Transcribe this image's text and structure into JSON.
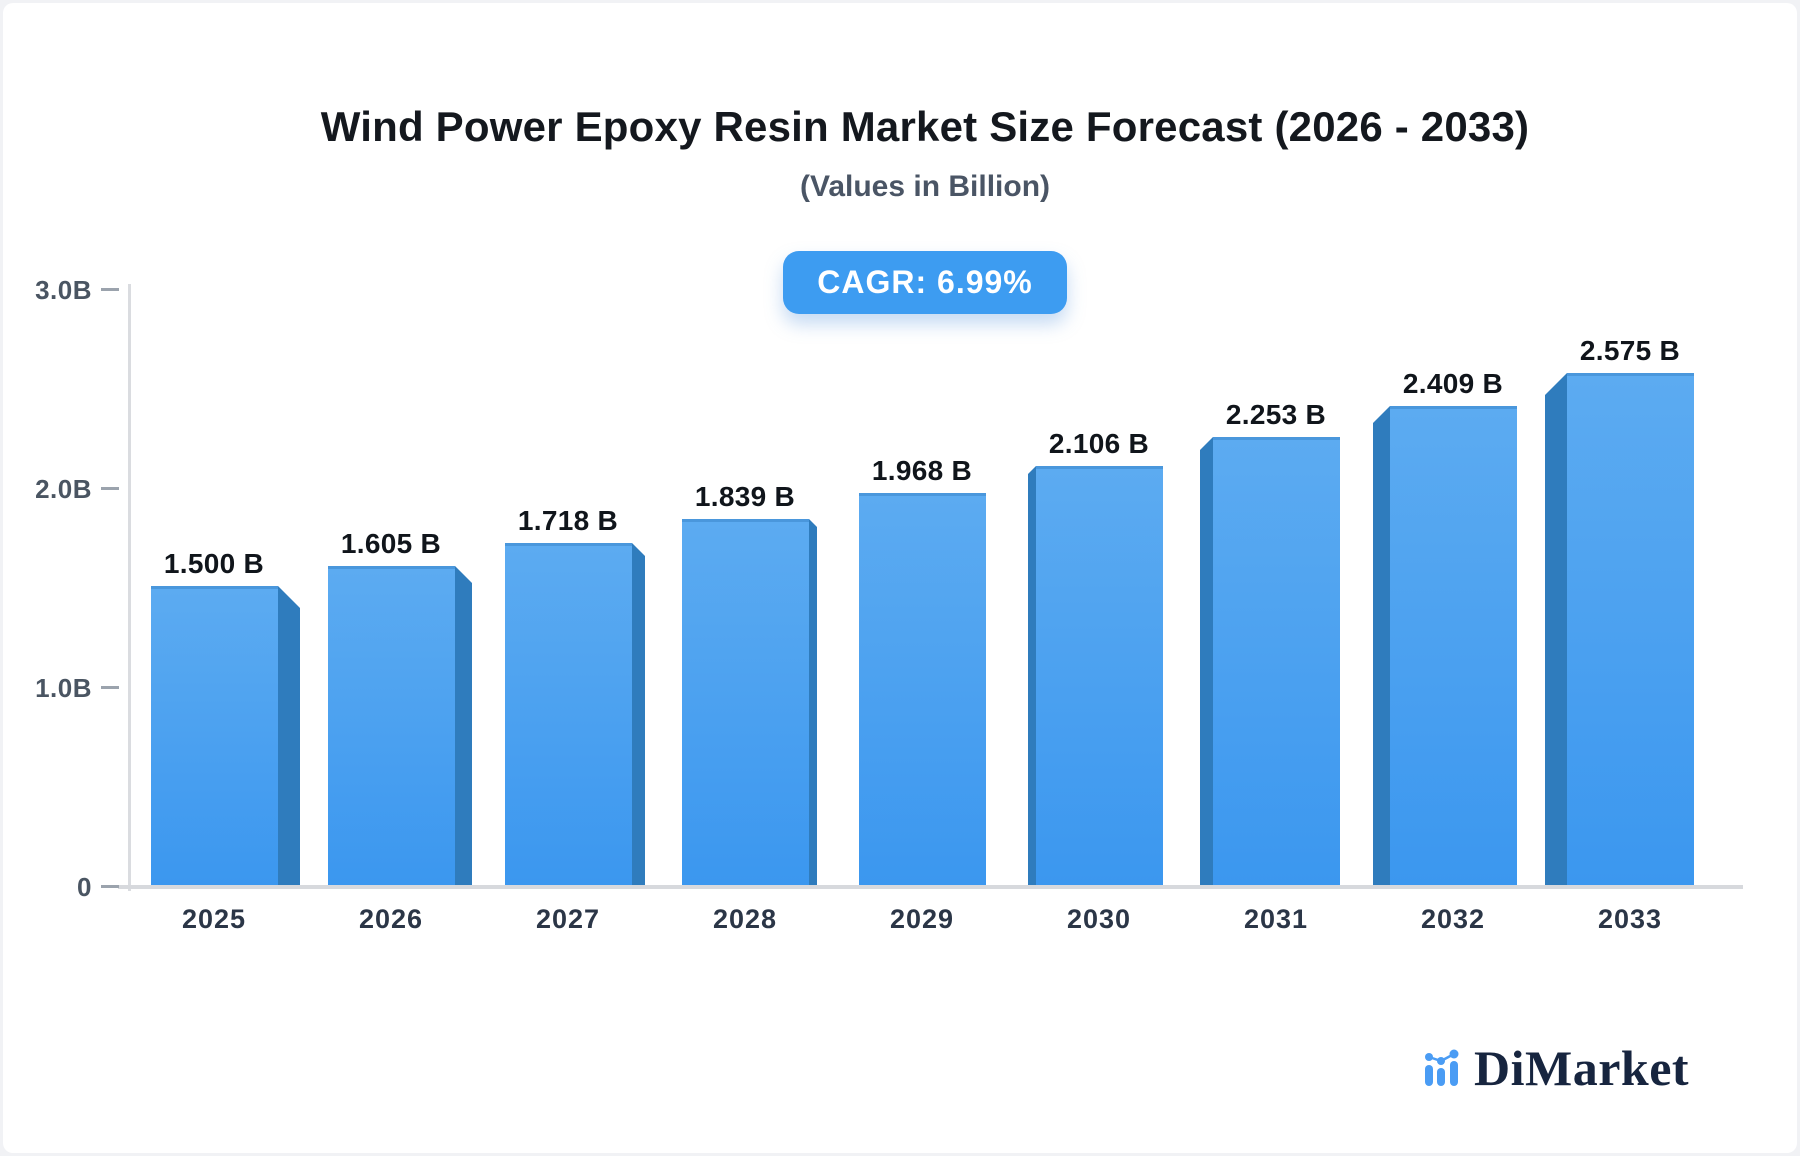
{
  "page": {
    "background": "#F1F2F5",
    "card_background": "#FFFFFF"
  },
  "chart_data": {
    "type": "bar",
    "title": "Wind Power Epoxy Resin Market Size Forecast (2026 - 2033)",
    "subtitle": "(Values in Billion)",
    "cagr_label": "CAGR: 6.99%",
    "categories": [
      "2025",
      "2026",
      "2027",
      "2028",
      "2029",
      "2030",
      "2031",
      "2032",
      "2033"
    ],
    "values": [
      1.5,
      1.605,
      1.718,
      1.839,
      1.968,
      2.106,
      2.253,
      2.409,
      2.575
    ],
    "value_labels": [
      "1.500 B",
      "1.605 B",
      "1.718 B",
      "1.839 B",
      "1.968 B",
      "2.106 B",
      "2.253 B",
      "2.409 B",
      "2.575 B"
    ],
    "xlabel": "",
    "ylabel": "",
    "ylim": [
      0,
      3.0
    ],
    "yticks": [
      {
        "value": 0,
        "label": "0"
      },
      {
        "value": 1,
        "label": "1.0B"
      },
      {
        "value": 2,
        "label": "2.0B"
      },
      {
        "value": 3,
        "label": "3.0B"
      }
    ],
    "grid": "off",
    "legend": "none",
    "colors": {
      "bar_face_top": "#5CABF1",
      "bar_face_bottom": "#3B97EF",
      "bar_top_edge": "#4A97DC",
      "bar_side": "#2F7CBD",
      "badge_blue": "#3D9CF1",
      "axis_line": "#D7D9DD",
      "tick_text": "#4A5562",
      "value_text": "#10151B",
      "year_text": "#2B3647",
      "logo_navy": "#17253F",
      "logo_blue": "#4A9CF4"
    }
  },
  "watermark": {
    "brand": "DiMarket"
  }
}
